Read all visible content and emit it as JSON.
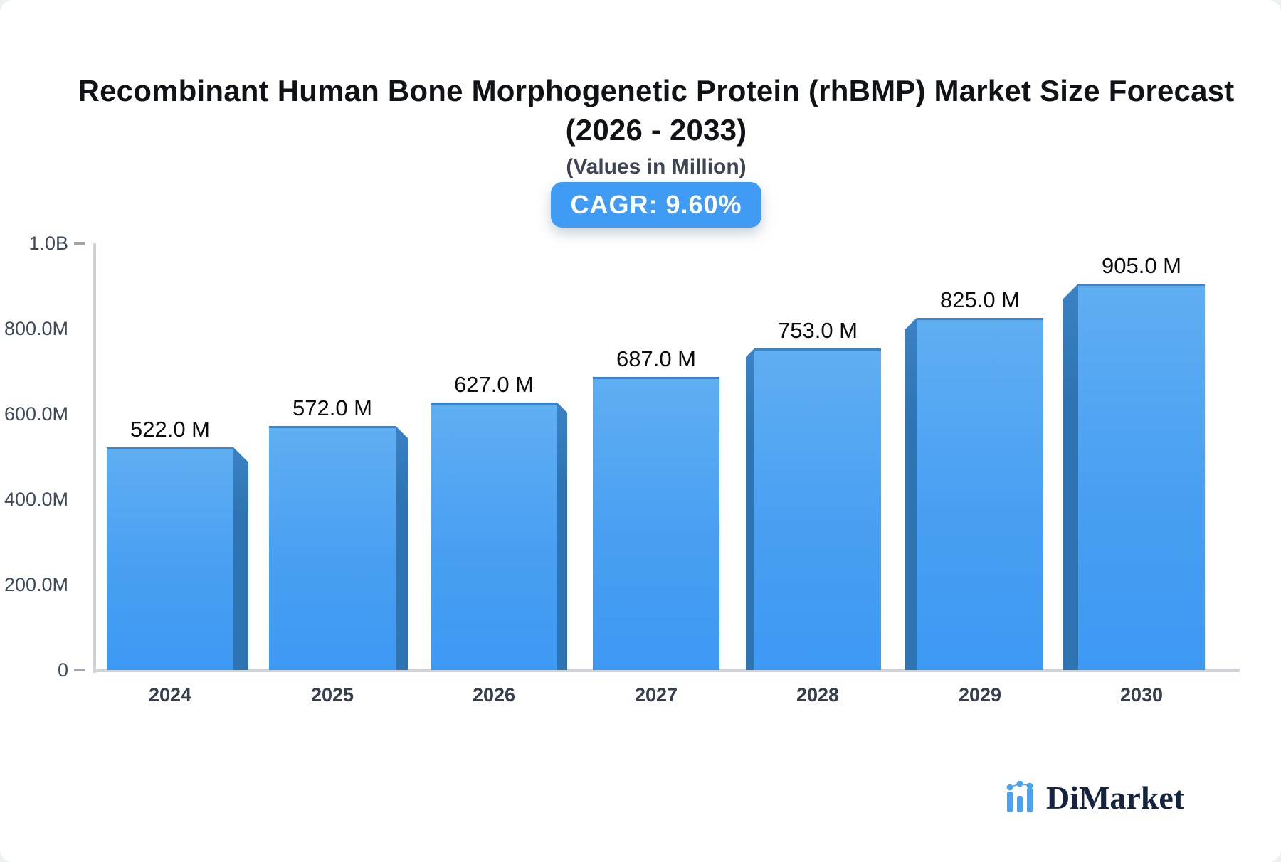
{
  "title": "Recombinant Human Bone Morphogenetic Protein (rhBMP) Market Size Forecast (2026 - 2033)",
  "subtitle": "(Values in Million)",
  "badge": {
    "label": "CAGR: 9.60%"
  },
  "logo": {
    "text": "DiMarket",
    "icon": "bar-chart-with-trend-icon"
  },
  "chart_data": {
    "type": "bar",
    "title": "Recombinant Human Bone Morphogenetic Protein (rhBMP) Market Size Forecast (2026 - 2033)",
    "subtitle": "(Values in Million)",
    "cagr_percent": 9.6,
    "categories": [
      "2024",
      "2025",
      "2026",
      "2027",
      "2028",
      "2029",
      "2030"
    ],
    "values": [
      522.0,
      572.0,
      627.0,
      687.0,
      753.0,
      825.0,
      905.0
    ],
    "value_labels": [
      "522.0 M",
      "572.0 M",
      "627.0 M",
      "687.0 M",
      "753.0 M",
      "825.0 M",
      "905.0 M"
    ],
    "unit": "million",
    "xlabel": "",
    "ylabel": "",
    "ylim_million": [
      0,
      1000
    ],
    "y_tick_labels": [
      "0",
      "200.0M",
      "400.0M",
      "600.0M",
      "800.0M",
      "1.0B"
    ],
    "gridlines": false,
    "legend": false,
    "colors": {
      "bar_face_top": "#5FAEF2",
      "bar_face_bottom": "#3E99F3",
      "bar_side": "#2E74B2",
      "bar_top_stroke": "#3C84C8",
      "badge_bg": "#3F9BF3",
      "axis_line": "#CDD2DB",
      "tick_dash": "#9FA6B0",
      "logo_blue": "#4BA1F2",
      "logo_navy": "#16233E"
    }
  }
}
